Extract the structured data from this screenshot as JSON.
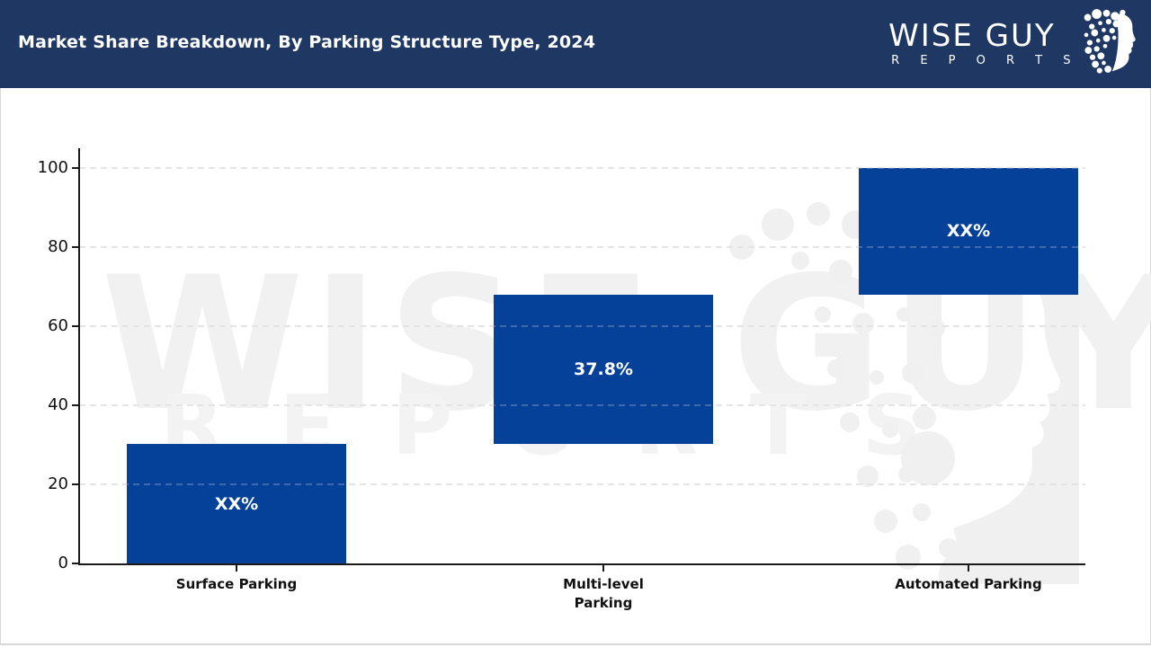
{
  "header": {
    "title": "Market Share Breakdown, By Parking Structure Type, 2024",
    "logo": {
      "line1": "WISE GUY",
      "line2": "R E P O R T S"
    }
  },
  "watermark": {
    "line1": "WISE GUY",
    "line2": "REPORTS"
  },
  "colors": {
    "header_bg": "#1f3863",
    "bar": "#054199",
    "grid": "#dcdcdc",
    "axis": "#1a1a1a",
    "bar_label": "#ffffff",
    "watermark": "#f1f1f1"
  },
  "chart_data": {
    "type": "bar",
    "variant": "floating-segment bars (market share breakdown)",
    "title": "Market Share Breakdown, By Parking Structure Type, 2024",
    "categories": [
      "Surface Parking",
      "Multi-level\nParking",
      "Automated Parking"
    ],
    "bars": [
      {
        "category": "Surface Parking",
        "start": 0,
        "end": 30.2,
        "label": "XX%"
      },
      {
        "category": "Multi-level Parking",
        "start": 30.2,
        "end": 68,
        "label": "37.8%"
      },
      {
        "category": "Automated Parking",
        "start": 68,
        "end": 100,
        "label": "XX%"
      }
    ],
    "xlabel": "",
    "ylabel": "",
    "ylim": [
      0,
      100
    ],
    "yticks": [
      0,
      20,
      40,
      60,
      80,
      100
    ],
    "grid": "horizontal dashed",
    "legend": "none"
  }
}
